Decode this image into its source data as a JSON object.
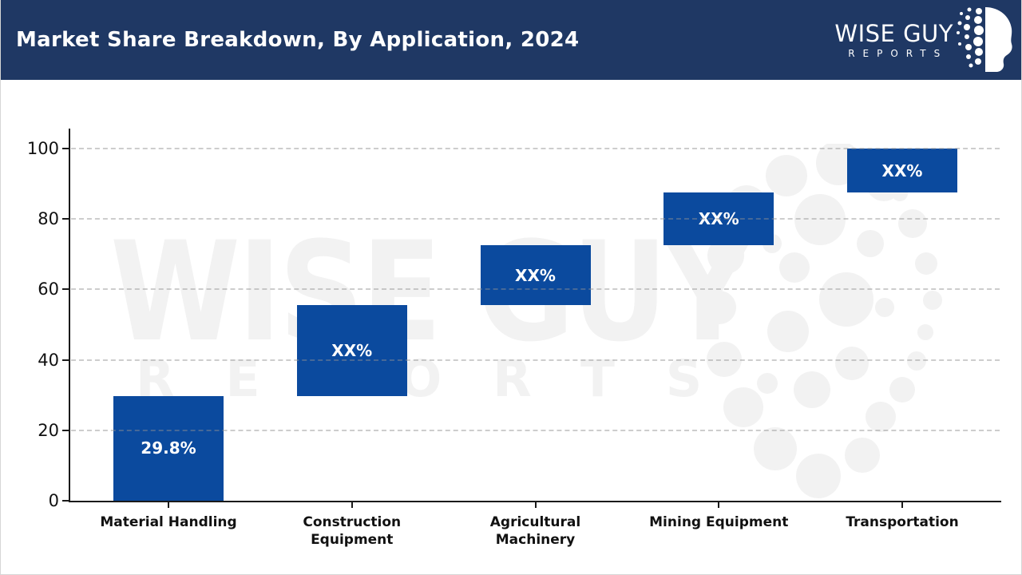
{
  "header": {
    "title": "Market Share Breakdown, By Application, 2024",
    "logo": {
      "name": "WISE GUY",
      "tagline": "REPORTS"
    }
  },
  "watermark": {
    "line1": "WISE GUY",
    "line2": "REPORTS"
  },
  "colors": {
    "header_bg": "#1f3864",
    "bar": "#0b4a9e",
    "axis": "#1a1a1a",
    "grid": "#cccccc",
    "bar_label_text": "#ffffff"
  },
  "chart_data": {
    "type": "bar",
    "variant": "floating-waterfall",
    "title": "Market Share Breakdown, By Application, 2024",
    "categories": [
      "Material Handling",
      "Construction\nEquipment",
      "Agricultural\nMachinery",
      "Mining Equipment",
      "Transportation"
    ],
    "bars": [
      {
        "category": "Material Handling",
        "start": 0,
        "end": 29.8,
        "label": "29.8%"
      },
      {
        "category": "Construction Equipment",
        "start": 29.8,
        "end": 55.5,
        "label": "XX%"
      },
      {
        "category": "Agricultural Machinery",
        "start": 55.5,
        "end": 72.5,
        "label": "XX%"
      },
      {
        "category": "Mining Equipment",
        "start": 72.5,
        "end": 87.5,
        "label": "XX%"
      },
      {
        "category": "Transportation",
        "start": 87.5,
        "end": 100,
        "label": "XX%"
      }
    ],
    "ylim": [
      0,
      100
    ],
    "yticks": [
      0,
      20,
      40,
      60,
      80,
      100
    ],
    "xlabel": "",
    "ylabel": "",
    "grid": "horizontal-dashed",
    "legend": "none"
  }
}
